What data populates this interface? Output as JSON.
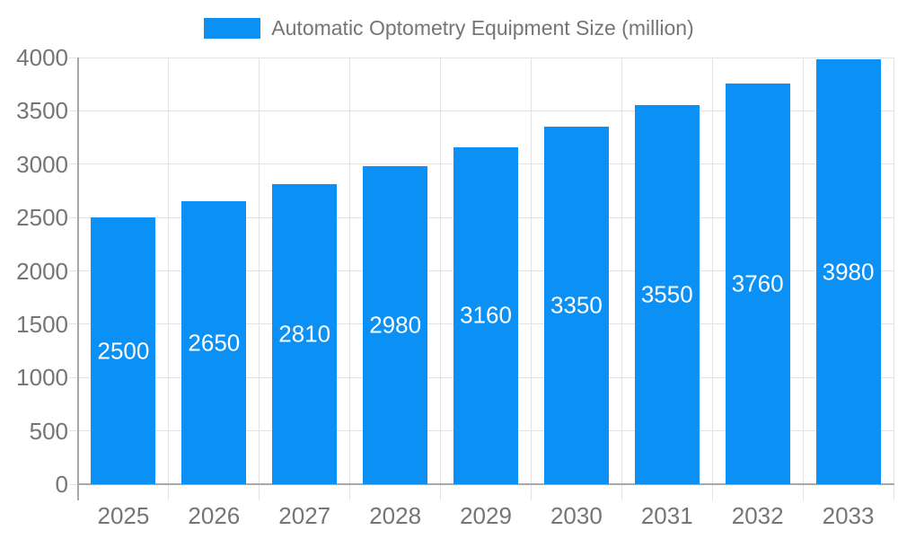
{
  "chart_data": {
    "type": "bar",
    "title": "Automatic Optometry Equipment Size (million)",
    "categories": [
      "2025",
      "2026",
      "2027",
      "2028",
      "2029",
      "2030",
      "2031",
      "2032",
      "2033"
    ],
    "values": [
      2500,
      2650,
      2810,
      2980,
      3160,
      3350,
      3550,
      3760,
      3980
    ],
    "xlabel": "",
    "ylabel": "",
    "ylim": [
      0,
      4000
    ],
    "ytick_step": 500,
    "yticks": [
      0,
      500,
      1000,
      1500,
      2000,
      2500,
      3000,
      3500,
      4000
    ],
    "grid": true,
    "legend_position": "top",
    "bar_labels_visible": true,
    "colors": {
      "bar": "#0b90f5",
      "bar_label": "#ffffff",
      "axis_text": "#757575",
      "gridline": "#e3e3e3",
      "axis_line": "#a9a9a9",
      "background": "#ffffff"
    }
  }
}
